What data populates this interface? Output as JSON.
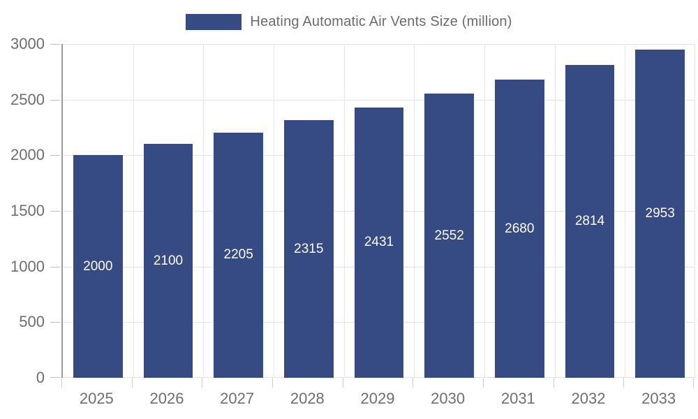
{
  "legend": {
    "label": "Heating Automatic Air Vents Size (million)"
  },
  "chart_data": {
    "type": "bar",
    "title": "Heating Automatic Air Vents Size (million)",
    "categories": [
      "2025",
      "2026",
      "2027",
      "2028",
      "2029",
      "2030",
      "2031",
      "2032",
      "2033"
    ],
    "values": [
      2000,
      2100,
      2205,
      2315,
      2431,
      2552,
      2680,
      2814,
      2953
    ],
    "xlabel": "",
    "ylabel": "",
    "ylim": [
      0,
      3000
    ],
    "yticks": [
      0,
      500,
      1000,
      1500,
      2000,
      2500,
      3000
    ],
    "grid": true,
    "legend_position": "top",
    "bar_labels_visible": true,
    "bar_label_position": "center"
  },
  "colors": {
    "bar": "#364a84",
    "bar_label": "#ffffff",
    "grid": "#e2e2e2",
    "axis_line": "#9a9a9a",
    "tick": "#bdbdbd",
    "tick_text": "#6e6e6e",
    "legend_text": "#6b6b6b",
    "background": "#ffffff"
  }
}
